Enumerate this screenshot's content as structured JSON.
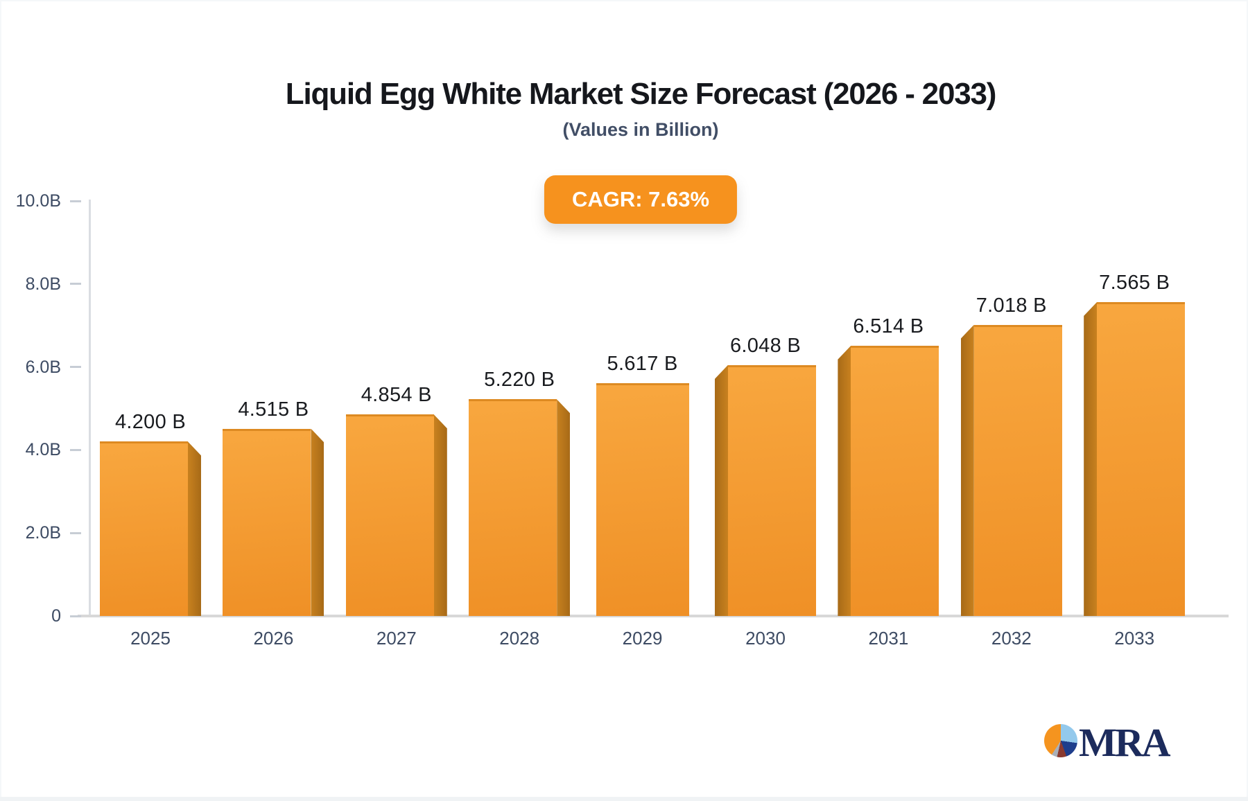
{
  "header": {
    "title": "Liquid Egg White Market Size Forecast (2026 - 2033)",
    "subtitle": "(Values in Billion)",
    "cagr_badge": "CAGR: 7.63%",
    "badge_color": "#f6921e"
  },
  "chart_data": {
    "type": "bar",
    "title": "Liquid Egg White Market Size Forecast (2026 - 2033)",
    "subtitle": "(Values in Billion)",
    "annotation": "CAGR: 7.63%",
    "categories": [
      "2025",
      "2026",
      "2027",
      "2028",
      "2029",
      "2030",
      "2031",
      "2032",
      "2033"
    ],
    "values": [
      4.2,
      4.515,
      4.854,
      5.22,
      5.617,
      6.048,
      6.514,
      7.018,
      7.565
    ],
    "value_labels": [
      "4.200 B",
      "4.515 B",
      "4.854 B",
      "5.220 B",
      "5.617 B",
      "6.048 B",
      "6.514 B",
      "7.018 B",
      "7.565 B"
    ],
    "unit": "Billion",
    "ylim": [
      0,
      10
    ],
    "y_ticks": [
      {
        "label": "0",
        "value": 0
      },
      {
        "label": "2.0B",
        "value": 2
      },
      {
        "label": "4.0B",
        "value": 4
      },
      {
        "label": "6.0B",
        "value": 6
      },
      {
        "label": "8.0B",
        "value": 8
      },
      {
        "label": "10.0B",
        "value": 10
      }
    ],
    "grid": "off",
    "legend": "none",
    "colors": {
      "bar_top": "#f8a73f",
      "bar_bottom": "#ef9026",
      "bar_edge": "#dd8a22",
      "bar_side_dark": "#a76a17",
      "bar_side_light": "#c8811f",
      "axis": "#dadde2",
      "baseline": "#d8d8d8",
      "tick_label": "#3d4b63",
      "value_label": "#191b1f"
    }
  },
  "logo": {
    "text": "MRA",
    "text_color": "#1c2b5c",
    "pie_slices": [
      {
        "name": "sky-blue",
        "color": "#93c9ec",
        "from": 4,
        "to": 98
      },
      {
        "name": "navy",
        "color": "#1e3e8c",
        "from": 98,
        "to": 160
      },
      {
        "name": "maroon",
        "color": "#8a3a30",
        "from": 160,
        "to": 193
      },
      {
        "name": "gray",
        "color": "#aab0b8",
        "from": 193,
        "to": 213
      },
      {
        "name": "orange",
        "color": "#f5941f",
        "from": 213,
        "to": 364
      }
    ]
  }
}
